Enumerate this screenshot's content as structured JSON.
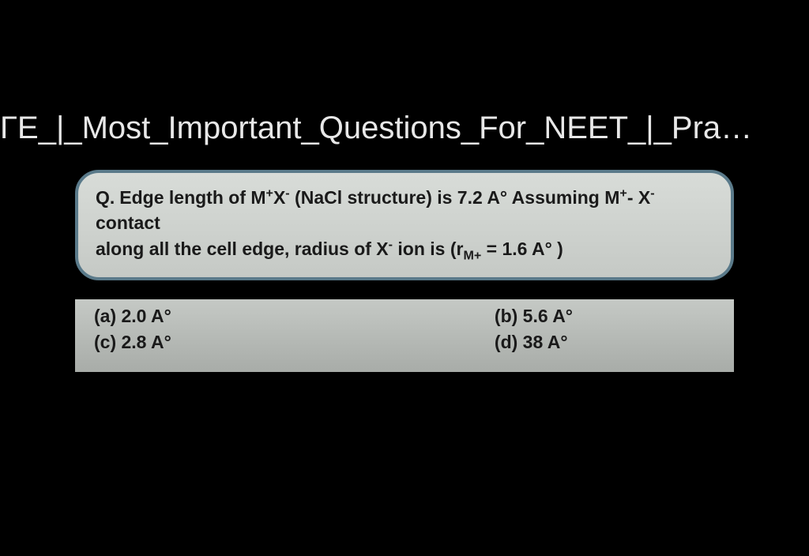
{
  "title": "ΓE_|_Most_Important_Questions_For_NEET_|_Pra…",
  "question": {
    "prefix": "Q.",
    "line1_html": "Edge length of M<span class='sup'>+</span>X<span class='sup'>-</span> (NaCl structure) is 7.2 A° Assuming M<span class='sup'>+</span>- X<span class='sup'>-</span> contact",
    "line2_html": "along all the cell edge,  radius of X<span class='sup'>-</span> ion is (r<span class='sub'>M+</span> = 1.6 A° )"
  },
  "options": {
    "a": "(a) 2.0 A°",
    "b": "(b)  5.6 A°",
    "c": "(c) 2.8 A°",
    "d": "(d)  38 A°"
  },
  "colors": {
    "background": "#000000",
    "title_text": "#e8e8e8",
    "box_border": "#5a7a8a",
    "box_bg_top": "#d8dcd8",
    "box_bg_bottom": "#c5c9c5",
    "option_bg_top": "#c5c9c5",
    "option_bg_bottom": "#a8aca8",
    "text": "#1a1a1a"
  },
  "typography": {
    "title_fontsize": 40,
    "question_fontsize": 23,
    "option_fontsize": 23,
    "font_weight": "bold"
  }
}
